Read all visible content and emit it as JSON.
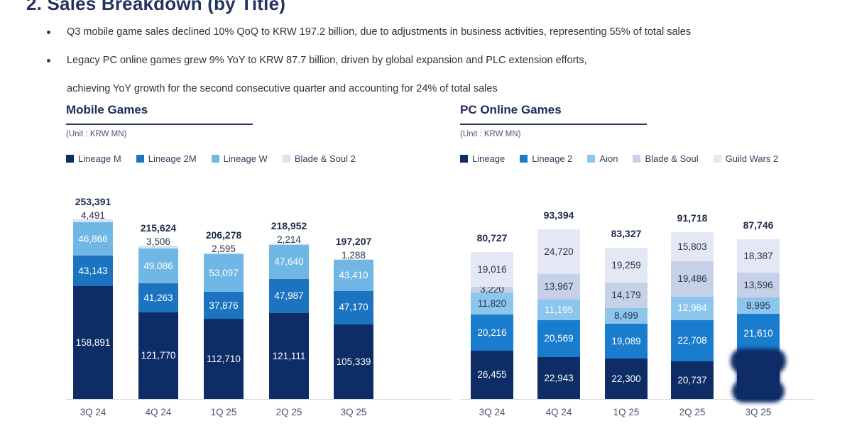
{
  "page": {
    "title": "2. Sales Breakdown (by Title)",
    "bullets": [
      {
        "text": "Q3 mobile game sales declined 10% QoQ to KRW 197.2 billion, due to adjustments in business activities, representing 55% of total sales"
      },
      {
        "text": "Legacy PC online games grew 9% YoY to KRW 87.7 billion, driven by global expansion and PLC extension efforts,",
        "continuation": "achieving YoY growth for the second consecutive quarter and accounting for 24% of total sales"
      }
    ]
  },
  "chart_data": [
    {
      "type": "bar",
      "stacked": true,
      "title": "Mobile Games",
      "unit_label": "(Unit : KRW MN)",
      "legend_position": "top",
      "categories": [
        "3Q 24",
        "4Q 24",
        "1Q 25",
        "2Q 25",
        "3Q 25"
      ],
      "totals": [
        253391,
        215624,
        206278,
        218952,
        197207
      ],
      "total_labels": [
        "253,391",
        "215,624",
        "206,278",
        "218,952",
        "197,207"
      ],
      "series": [
        {
          "name": "Lineage M",
          "color": "#0e2c66",
          "label_placement": "inside",
          "label_colors": [
            "#ffffff",
            "#ffffff",
            "#ffffff",
            "#ffffff",
            "#ffffff"
          ],
          "values": [
            158891,
            121770,
            112710,
            121111,
            105339
          ],
          "labels": [
            "158,891",
            "121,770",
            "112,710",
            "121,111",
            "105,339"
          ]
        },
        {
          "name": "Lineage 2M",
          "color": "#1c74c0",
          "label_placement": "inside",
          "label_colors": [
            "#ffffff",
            "#ffffff",
            "#ffffff",
            "#ffffff",
            "#ffffff"
          ],
          "values": [
            43143,
            41263,
            37876,
            47987,
            47170
          ],
          "labels": [
            "43,143",
            "41,263",
            "37,876",
            "47,987",
            "47,170"
          ]
        },
        {
          "name": "Lineage W",
          "color": "#70b7e5",
          "label_placement": "inside",
          "label_colors": [
            "#ffffff",
            "#ffffff",
            "#ffffff",
            "#ffffff",
            "#ffffff"
          ],
          "values": [
            46866,
            49086,
            53097,
            47640,
            43410
          ],
          "labels": [
            "46,866",
            "49,086",
            "53,097",
            "47,640",
            "43,410"
          ]
        },
        {
          "name": "Blade & Soul 2",
          "color": "#d9e2f1",
          "label_placement": "above",
          "label_colors": [
            "#2a3550",
            "#2a3550",
            "#2a3550",
            "#2a3550",
            "#2a3550"
          ],
          "values": [
            4491,
            3506,
            2595,
            2214,
            1288
          ],
          "labels": [
            "4,491",
            "3,506",
            "2,595",
            "2,214",
            "1,288"
          ]
        }
      ]
    },
    {
      "type": "bar",
      "stacked": true,
      "title": "PC Online Games",
      "unit_label": "(Unit : KRW MN)",
      "legend_position": "top",
      "categories": [
        "3Q 24",
        "4Q 24",
        "1Q 25",
        "2Q 25",
        "3Q 25"
      ],
      "totals": [
        80727,
        93394,
        83327,
        91718,
        87746
      ],
      "total_labels": [
        "80,727",
        "93,394",
        "83,327",
        "91,718",
        "87,746"
      ],
      "series": [
        {
          "name": "Lineage",
          "color": "#0e2c66",
          "label_placement": "inside",
          "label_colors": [
            "#ffffff",
            "#ffffff",
            "#ffffff",
            "#ffffff",
            "#ffffff"
          ],
          "values": [
            26455,
            22943,
            22300,
            20737,
            25158
          ],
          "labels": [
            "26,455",
            "22,943",
            "22,300",
            "20,737",
            ""
          ]
        },
        {
          "name": "Lineage 2",
          "color": "#1a7ccd",
          "label_placement": "inside",
          "label_colors": [
            "#ffffff",
            "#ffffff",
            "#ffffff",
            "#ffffff",
            "#ffffff"
          ],
          "values": [
            20216,
            20569,
            19089,
            22708,
            21610
          ],
          "labels": [
            "20,216",
            "20,569",
            "19,089",
            "22,708",
            "21,610"
          ]
        },
        {
          "name": "Aion",
          "color": "#8cc6ec",
          "label_placement": "inside",
          "label_colors": [
            "#2a3550",
            "#ffffff",
            "#2a3550",
            "#ffffff",
            "#2a3550"
          ],
          "values": [
            11820,
            11195,
            8499,
            12984,
            8995
          ],
          "labels": [
            "11,820",
            "11,195",
            "8,499",
            "12,984",
            "8,995"
          ]
        },
        {
          "name": "Blade & Soul",
          "color": "#c6d1e8",
          "label_placement": "inside",
          "label_colors": [
            "#2a3550",
            "#2a3550",
            "#2a3550",
            "#2a3550",
            "#2a3550"
          ],
          "values": [
            3220,
            13967,
            14179,
            19486,
            13596
          ],
          "labels": [
            "3,220",
            "13,967",
            "14,179",
            "19,486",
            "13,596"
          ]
        },
        {
          "name": "Guild Wars 2",
          "color": "#e3e8f4",
          "label_placement": "inside",
          "label_colors": [
            "#2a3550",
            "#2a3550",
            "#2a3550",
            "#2a3550",
            "#2a3550"
          ],
          "values": [
            19016,
            24720,
            19259,
            15803,
            18387
          ],
          "labels": [
            "19,016",
            "24,720",
            "19,259",
            "15,803",
            "18,387"
          ]
        }
      ]
    }
  ]
}
